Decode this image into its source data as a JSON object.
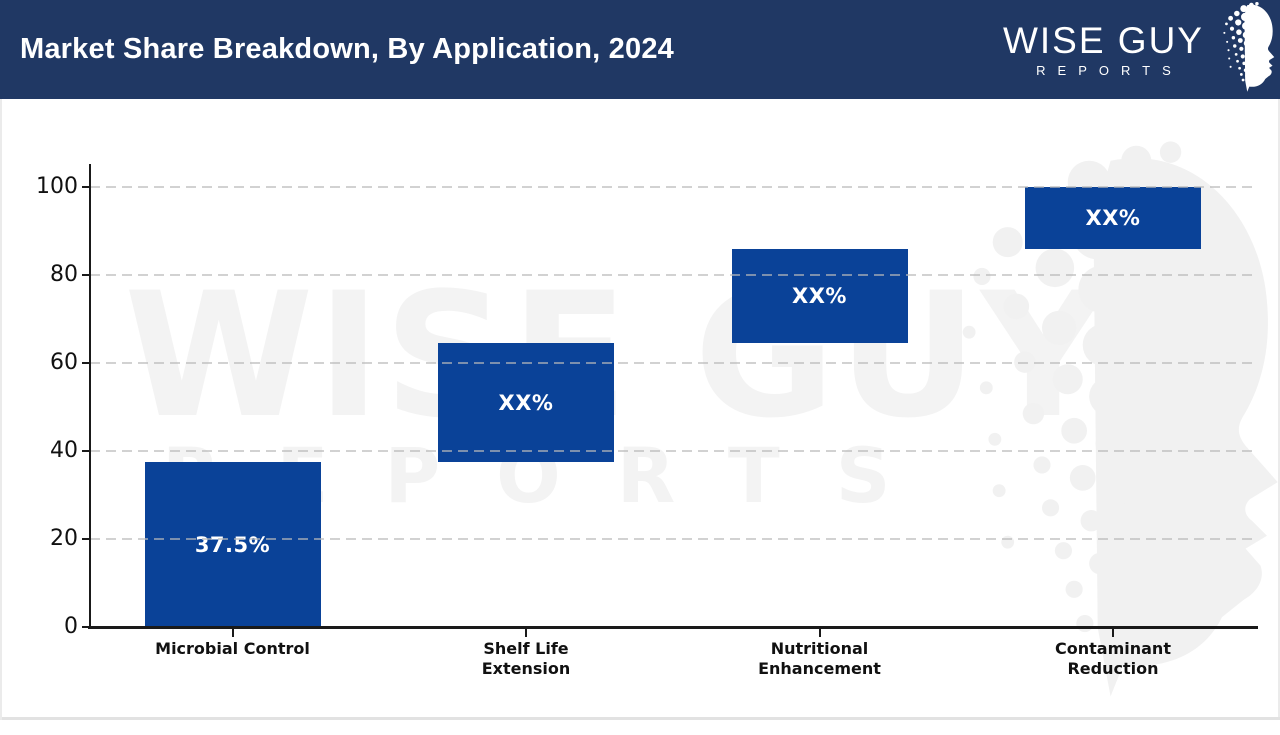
{
  "header": {
    "title": "Market Share Breakdown, By Application, 2024",
    "bg_color": "#203864",
    "logo": {
      "line1": "WISE GUY",
      "line2": "REPORTS"
    }
  },
  "watermark": {
    "line1": "WISE GUY",
    "line2": "REPORTS"
  },
  "chart_data": {
    "type": "bar",
    "subtype": "waterfall-floating-segments",
    "title": "Market Share Breakdown, By Application, 2024",
    "categories": [
      "Microbial Control",
      "Shelf Life\nExtension",
      "Nutritional\nEnhancement",
      "Contaminant\nReduction"
    ],
    "segments": [
      [
        0,
        37.5
      ],
      [
        37.5,
        64.5
      ],
      [
        64.5,
        86
      ],
      [
        86,
        100
      ]
    ],
    "values": [
      37.5,
      27,
      21.5,
      14
    ],
    "bar_labels": [
      "37.5%",
      "XX%",
      "XX%",
      "XX%"
    ],
    "yticks": [
      0,
      20,
      40,
      60,
      80,
      100
    ],
    "ylim": [
      0,
      100
    ],
    "xlabel": "",
    "ylabel": "",
    "grid": "horizontal-dashed-over-bars",
    "legend": "none",
    "bar_color": "#0a4298",
    "bar_label_color": "#ffffff",
    "gridline_color": "#d9d9d9",
    "watermark_color": "#f3f3f3"
  }
}
